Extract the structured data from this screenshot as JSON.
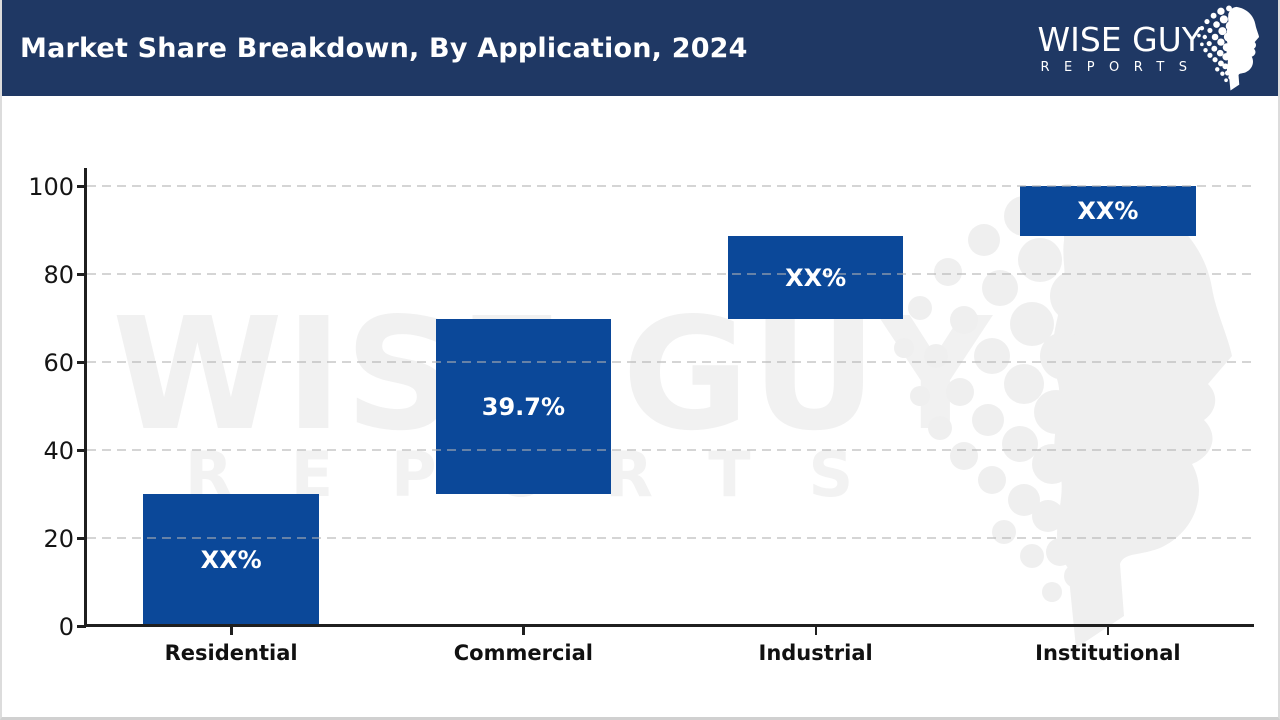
{
  "header": {
    "title": "Market Share Breakdown, By Application, 2024",
    "background": "#1f3864",
    "logo": {
      "wordmark": "WISE GUY",
      "subtext": "REPORTS",
      "icon": "dotted-face-profile-icon"
    }
  },
  "watermark": {
    "wordmark": "WISE GUY",
    "subtext": "REPORTS"
  },
  "chart_data": {
    "type": "bar",
    "variant": "waterfall",
    "title": "Market Share Breakdown, By Application, 2024",
    "categories": [
      "Residential",
      "Commercial",
      "Industrial",
      "Institutional"
    ],
    "segments": [
      {
        "category": "Residential",
        "start": 0,
        "end": 30,
        "label": "XX%"
      },
      {
        "category": "Commercial",
        "start": 30,
        "end": 69.7,
        "label": "39.7%"
      },
      {
        "category": "Industrial",
        "start": 69.7,
        "end": 88.6,
        "label": "XX%"
      },
      {
        "category": "Institutional",
        "start": 88.6,
        "end": 100,
        "label": "XX%"
      }
    ],
    "xlabel": "",
    "ylabel": "",
    "ylim": [
      0,
      100
    ],
    "yticks": [
      0,
      20,
      40,
      60,
      80,
      100
    ],
    "grid": "dashed-horizontal-over-bars",
    "legend": "none",
    "bar_color": "#0b4899",
    "bar_label_color": "#ffffff"
  }
}
